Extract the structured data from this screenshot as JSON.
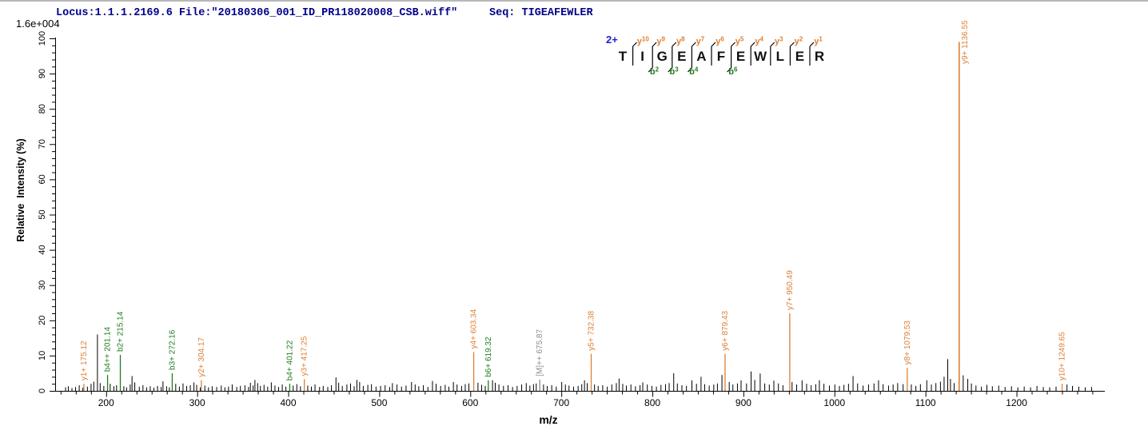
{
  "header": {
    "locus_file": "Locus:1.1.1.2169.6 File:\"20180306_001_ID_PR118020008_CSB.wiff\"",
    "seq": "Seq: TIGEAFEWLER",
    "scale_label": "1.6e+004"
  },
  "sequence_panel": {
    "charge_label": "2+",
    "residues": [
      "T",
      "I",
      "G",
      "E",
      "A",
      "F",
      "E",
      "W",
      "L",
      "E",
      "R"
    ],
    "y_ions": [
      {
        "boundary": 1,
        "base": "y",
        "sub": "10"
      },
      {
        "boundary": 2,
        "base": "y",
        "sub": "9"
      },
      {
        "boundary": 3,
        "base": "y",
        "sub": "8"
      },
      {
        "boundary": 4,
        "base": "y",
        "sub": "7"
      },
      {
        "boundary": 5,
        "base": "y",
        "sub": "6"
      },
      {
        "boundary": 6,
        "base": "y",
        "sub": "5"
      },
      {
        "boundary": 7,
        "base": "y",
        "sub": "4"
      },
      {
        "boundary": 8,
        "base": "y",
        "sub": "3"
      },
      {
        "boundary": 9,
        "base": "y",
        "sub": "2"
      },
      {
        "boundary": 10,
        "base": "y",
        "sub": "1"
      }
    ],
    "b_ions": [
      {
        "boundary": 2,
        "base": "b",
        "sub": "2"
      },
      {
        "boundary": 3,
        "base": "b",
        "sub": "3"
      },
      {
        "boundary": 4,
        "base": "b",
        "sub": "4"
      },
      {
        "boundary": 6,
        "base": "b",
        "sub": "6"
      }
    ]
  },
  "colors": {
    "y_ion": "#dd7f33",
    "b_ion": "#1f7d1f",
    "precursor": "#8c8c8c",
    "noise": "#000000",
    "axis": "#000000",
    "header_text": "#00008b",
    "charge": "#2222cc",
    "residue": "#111111"
  },
  "chart_data": {
    "type": "bar",
    "subtype": "mass-spectrum-stick-plot",
    "xlabel": "m/z",
    "ylabel": "Relative  Intensity (%)",
    "x_range": [
      144,
      1297
    ],
    "y_range": [
      0,
      100
    ],
    "x_ticks": [
      200,
      300,
      400,
      500,
      600,
      700,
      800,
      900,
      1000,
      1100,
      1200
    ],
    "y_ticks": [
      0,
      10,
      20,
      30,
      40,
      50,
      60,
      70,
      80,
      90,
      100
    ],
    "grid": false,
    "annotated_peaks": [
      {
        "label": "y1+ 175.12",
        "mz": 175.12,
        "intensity": 2.0,
        "type": "y"
      },
      {
        "label": "b4++ 201.14",
        "mz": 201.14,
        "intensity": 4.5,
        "type": "b"
      },
      {
        "label": "b2+ 215.14",
        "mz": 215.14,
        "intensity": 10.2,
        "type": "b"
      },
      {
        "label": "b3+ 272.16",
        "mz": 272.16,
        "intensity": 5.0,
        "type": "b"
      },
      {
        "label": "y2+ 304.17",
        "mz": 304.17,
        "intensity": 3.0,
        "type": "y"
      },
      {
        "label": "b4+ 401.22",
        "mz": 401.22,
        "intensity": 2.0,
        "type": "b"
      },
      {
        "label": "y3+ 417.25",
        "mz": 417.25,
        "intensity": 3.3,
        "type": "y"
      },
      {
        "label": "y4+ 603.34",
        "mz": 603.34,
        "intensity": 11.0,
        "type": "y"
      },
      {
        "label": "b6+ 619.32",
        "mz": 619.32,
        "intensity": 3.0,
        "type": "b"
      },
      {
        "label": "[M]++ 675.87",
        "mz": 675.87,
        "intensity": 3.2,
        "type": "precursor"
      },
      {
        "label": "y5+ 732.38",
        "mz": 732.38,
        "intensity": 10.5,
        "type": "y"
      },
      {
        "label": "y6+ 879.43",
        "mz": 879.43,
        "intensity": 10.5,
        "type": "y"
      },
      {
        "label": "y7+ 950.49",
        "mz": 950.49,
        "intensity": 22.0,
        "type": "y"
      },
      {
        "label": "y8+ 1079.53",
        "mz": 1079.53,
        "intensity": 6.5,
        "type": "y"
      },
      {
        "label": "y9+ 1136.55",
        "mz": 1136.55,
        "intensity": 99.0,
        "type": "y"
      },
      {
        "label": "y10+ 1249.65",
        "mz": 1249.65,
        "intensity": 2.0,
        "type": "y"
      }
    ],
    "noise_peaks": [
      [
        155,
        1.0
      ],
      [
        158,
        1.3
      ],
      [
        162,
        0.8
      ],
      [
        166,
        1.1
      ],
      [
        170,
        1.6
      ],
      [
        174,
        0.9
      ],
      [
        179,
        1.2
      ],
      [
        183,
        2.0
      ],
      [
        186,
        2.6
      ],
      [
        190,
        16.0
      ],
      [
        193,
        2.2
      ],
      [
        197,
        1.4
      ],
      [
        204,
        2.0
      ],
      [
        208,
        1.3
      ],
      [
        211,
        1.6
      ],
      [
        219,
        1.3
      ],
      [
        222,
        1.0
      ],
      [
        226,
        1.8
      ],
      [
        228,
        4.2
      ],
      [
        231,
        2.4
      ],
      [
        236,
        1.2
      ],
      [
        240,
        1.6
      ],
      [
        244,
        1.0
      ],
      [
        248,
        1.3
      ],
      [
        252,
        0.9
      ],
      [
        256,
        1.4
      ],
      [
        260,
        1.1
      ],
      [
        262,
        2.7
      ],
      [
        266,
        1.3
      ],
      [
        269,
        1.0
      ],
      [
        276,
        2.0
      ],
      [
        280,
        1.2
      ],
      [
        284,
        2.1
      ],
      [
        288,
        1.4
      ],
      [
        292,
        1.6
      ],
      [
        296,
        2.4
      ],
      [
        299,
        1.7
      ],
      [
        303,
        1.0
      ],
      [
        308,
        1.5
      ],
      [
        312,
        1.0
      ],
      [
        316,
        1.3
      ],
      [
        321,
        1.1
      ],
      [
        326,
        1.5
      ],
      [
        330,
        1.0
      ],
      [
        334,
        1.2
      ],
      [
        338,
        1.8
      ],
      [
        343,
        1.1
      ],
      [
        347,
        1.4
      ],
      [
        352,
        1.6
      ],
      [
        356,
        1.1
      ],
      [
        358,
        2.3
      ],
      [
        361,
        1.5
      ],
      [
        363,
        3.1
      ],
      [
        366,
        2.2
      ],
      [
        369,
        1.4
      ],
      [
        373,
        1.7
      ],
      [
        377,
        1.2
      ],
      [
        381,
        2.4
      ],
      [
        385,
        1.5
      ],
      [
        389,
        1.1
      ],
      [
        393,
        1.8
      ],
      [
        397,
        1.2
      ],
      [
        405,
        1.5
      ],
      [
        409,
        1.9
      ],
      [
        413,
        1.3
      ],
      [
        421,
        1.5
      ],
      [
        425,
        1.2
      ],
      [
        429,
        1.8
      ],
      [
        434,
        1.1
      ],
      [
        438,
        1.4
      ],
      [
        443,
        1.1
      ],
      [
        447,
        1.6
      ],
      [
        452,
        3.8
      ],
      [
        455,
        2.3
      ],
      [
        459,
        1.4
      ],
      [
        464,
        1.8
      ],
      [
        468,
        2.1
      ],
      [
        472,
        1.3
      ],
      [
        475,
        3.1
      ],
      [
        478,
        2.5
      ],
      [
        482,
        1.4
      ],
      [
        487,
        1.7
      ],
      [
        491,
        1.9
      ],
      [
        496,
        1.2
      ],
      [
        501,
        1.4
      ],
      [
        506,
        1.6
      ],
      [
        511,
        1.1
      ],
      [
        514,
        2.2
      ],
      [
        519,
        1.8
      ],
      [
        524,
        1.2
      ],
      [
        529,
        1.5
      ],
      [
        535,
        2.5
      ],
      [
        539,
        1.8
      ],
      [
        543,
        1.3
      ],
      [
        548,
        1.6
      ],
      [
        553,
        1.1
      ],
      [
        558,
        2.8
      ],
      [
        562,
        2.0
      ],
      [
        567,
        1.4
      ],
      [
        572,
        1.7
      ],
      [
        576,
        1.2
      ],
      [
        581,
        2.5
      ],
      [
        585,
        1.8
      ],
      [
        590,
        1.4
      ],
      [
        594,
        1.9
      ],
      [
        598,
        2.1
      ],
      [
        608,
        2.3
      ],
      [
        612,
        1.7
      ],
      [
        616,
        1.4
      ],
      [
        624,
        3.0
      ],
      [
        627,
        2.3
      ],
      [
        631,
        1.8
      ],
      [
        636,
        1.4
      ],
      [
        641,
        1.6
      ],
      [
        646,
        1.1
      ],
      [
        651,
        1.4
      ],
      [
        656,
        1.8
      ],
      [
        661,
        2.2
      ],
      [
        665,
        1.5
      ],
      [
        669,
        1.9
      ],
      [
        672,
        2.1
      ],
      [
        680,
        1.8
      ],
      [
        684,
        1.4
      ],
      [
        689,
        1.6
      ],
      [
        694,
        1.2
      ],
      [
        700,
        2.5
      ],
      [
        704,
        1.8
      ],
      [
        708,
        1.5
      ],
      [
        713,
        1.2
      ],
      [
        718,
        1.4
      ],
      [
        722,
        1.9
      ],
      [
        725,
        3.0
      ],
      [
        728,
        2.2
      ],
      [
        736,
        1.8
      ],
      [
        740,
        1.4
      ],
      [
        745,
        1.6
      ],
      [
        750,
        1.2
      ],
      [
        755,
        1.8
      ],
      [
        760,
        2.2
      ],
      [
        763,
        3.5
      ],
      [
        767,
        2.0
      ],
      [
        771,
        1.5
      ],
      [
        776,
        1.8
      ],
      [
        781,
        1.3
      ],
      [
        786,
        1.6
      ],
      [
        789,
        2.4
      ],
      [
        794,
        1.8
      ],
      [
        799,
        1.4
      ],
      [
        804,
        1.2
      ],
      [
        809,
        1.7
      ],
      [
        814,
        1.9
      ],
      [
        818,
        2.2
      ],
      [
        823,
        5.0
      ],
      [
        827,
        2.1
      ],
      [
        832,
        1.6
      ],
      [
        837,
        1.4
      ],
      [
        843,
        3.0
      ],
      [
        848,
        2.0
      ],
      [
        853,
        4.0
      ],
      [
        857,
        1.9
      ],
      [
        862,
        1.5
      ],
      [
        867,
        1.8
      ],
      [
        871,
        2.1
      ],
      [
        876,
        4.5
      ],
      [
        884,
        2.5
      ],
      [
        888,
        1.8
      ],
      [
        893,
        2.1
      ],
      [
        897,
        3.0
      ],
      [
        903,
        2.1
      ],
      [
        908,
        5.5
      ],
      [
        912,
        3.1
      ],
      [
        918,
        4.9
      ],
      [
        923,
        2.1
      ],
      [
        928,
        1.8
      ],
      [
        933,
        2.9
      ],
      [
        938,
        2.1
      ],
      [
        943,
        1.6
      ],
      [
        953,
        2.5
      ],
      [
        958,
        1.8
      ],
      [
        964,
        3.0
      ],
      [
        969,
        2.0
      ],
      [
        974,
        1.6
      ],
      [
        979,
        1.9
      ],
      [
        983,
        3.0
      ],
      [
        988,
        2.0
      ],
      [
        994,
        1.5
      ],
      [
        1000,
        1.8
      ],
      [
        1005,
        1.4
      ],
      [
        1010,
        1.7
      ],
      [
        1015,
        2.0
      ],
      [
        1020,
        4.2
      ],
      [
        1025,
        2.1
      ],
      [
        1031,
        1.5
      ],
      [
        1037,
        1.8
      ],
      [
        1043,
        2.1
      ],
      [
        1048,
        3.0
      ],
      [
        1053,
        1.9
      ],
      [
        1059,
        1.5
      ],
      [
        1064,
        1.8
      ],
      [
        1069,
        2.2
      ],
      [
        1075,
        1.9
      ],
      [
        1084,
        1.8
      ],
      [
        1089,
        1.4
      ],
      [
        1094,
        1.9
      ],
      [
        1101,
        3.0
      ],
      [
        1106,
        1.8
      ],
      [
        1111,
        2.2
      ],
      [
        1116,
        2.6
      ],
      [
        1120,
        4.0
      ],
      [
        1124,
        9.0
      ],
      [
        1127,
        3.4
      ],
      [
        1131,
        2.2
      ],
      [
        1141,
        4.4
      ],
      [
        1146,
        3.4
      ],
      [
        1150,
        2.1
      ],
      [
        1155,
        1.5
      ],
      [
        1161,
        1.2
      ],
      [
        1167,
        1.7
      ],
      [
        1173,
        1.3
      ],
      [
        1180,
        1.5
      ],
      [
        1187,
        1.1
      ],
      [
        1194,
        1.3
      ],
      [
        1201,
        1.0
      ],
      [
        1208,
        1.2
      ],
      [
        1215,
        1.0
      ],
      [
        1222,
        1.4
      ],
      [
        1229,
        1.1
      ],
      [
        1236,
        1.0
      ],
      [
        1243,
        1.2
      ],
      [
        1255,
        1.8
      ],
      [
        1261,
        1.4
      ],
      [
        1268,
        1.2
      ],
      [
        1275,
        1.0
      ],
      [
        1282,
        1.1
      ]
    ]
  }
}
